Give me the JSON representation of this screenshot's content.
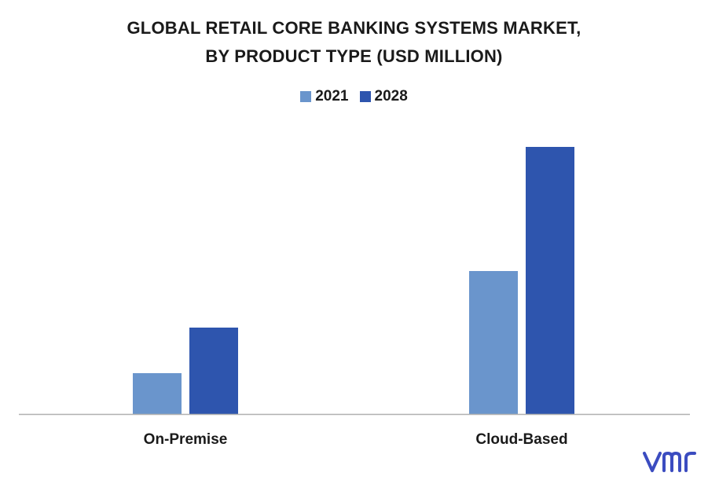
{
  "title_line1": "GLOBAL RETAIL CORE BANKING SYSTEMS MARKET,",
  "title_line2": "BY PRODUCT TYPE (USD MILLION)",
  "logo_text": "vmr",
  "colors": {
    "s2021": "#6a95cc",
    "s2028": "#2e55ae",
    "axis": "#b0b0b0",
    "logo": "#3b4cc0"
  },
  "chart_data": {
    "type": "bar",
    "categories": [
      "On-Premise",
      "Cloud-Based"
    ],
    "series": [
      {
        "name": "2021",
        "values": [
          52,
          182
        ]
      },
      {
        "name": "2028",
        "values": [
          110,
          340
        ]
      }
    ],
    "ylim": [
      0,
      400
    ],
    "grid": false,
    "legend": "top-center"
  }
}
